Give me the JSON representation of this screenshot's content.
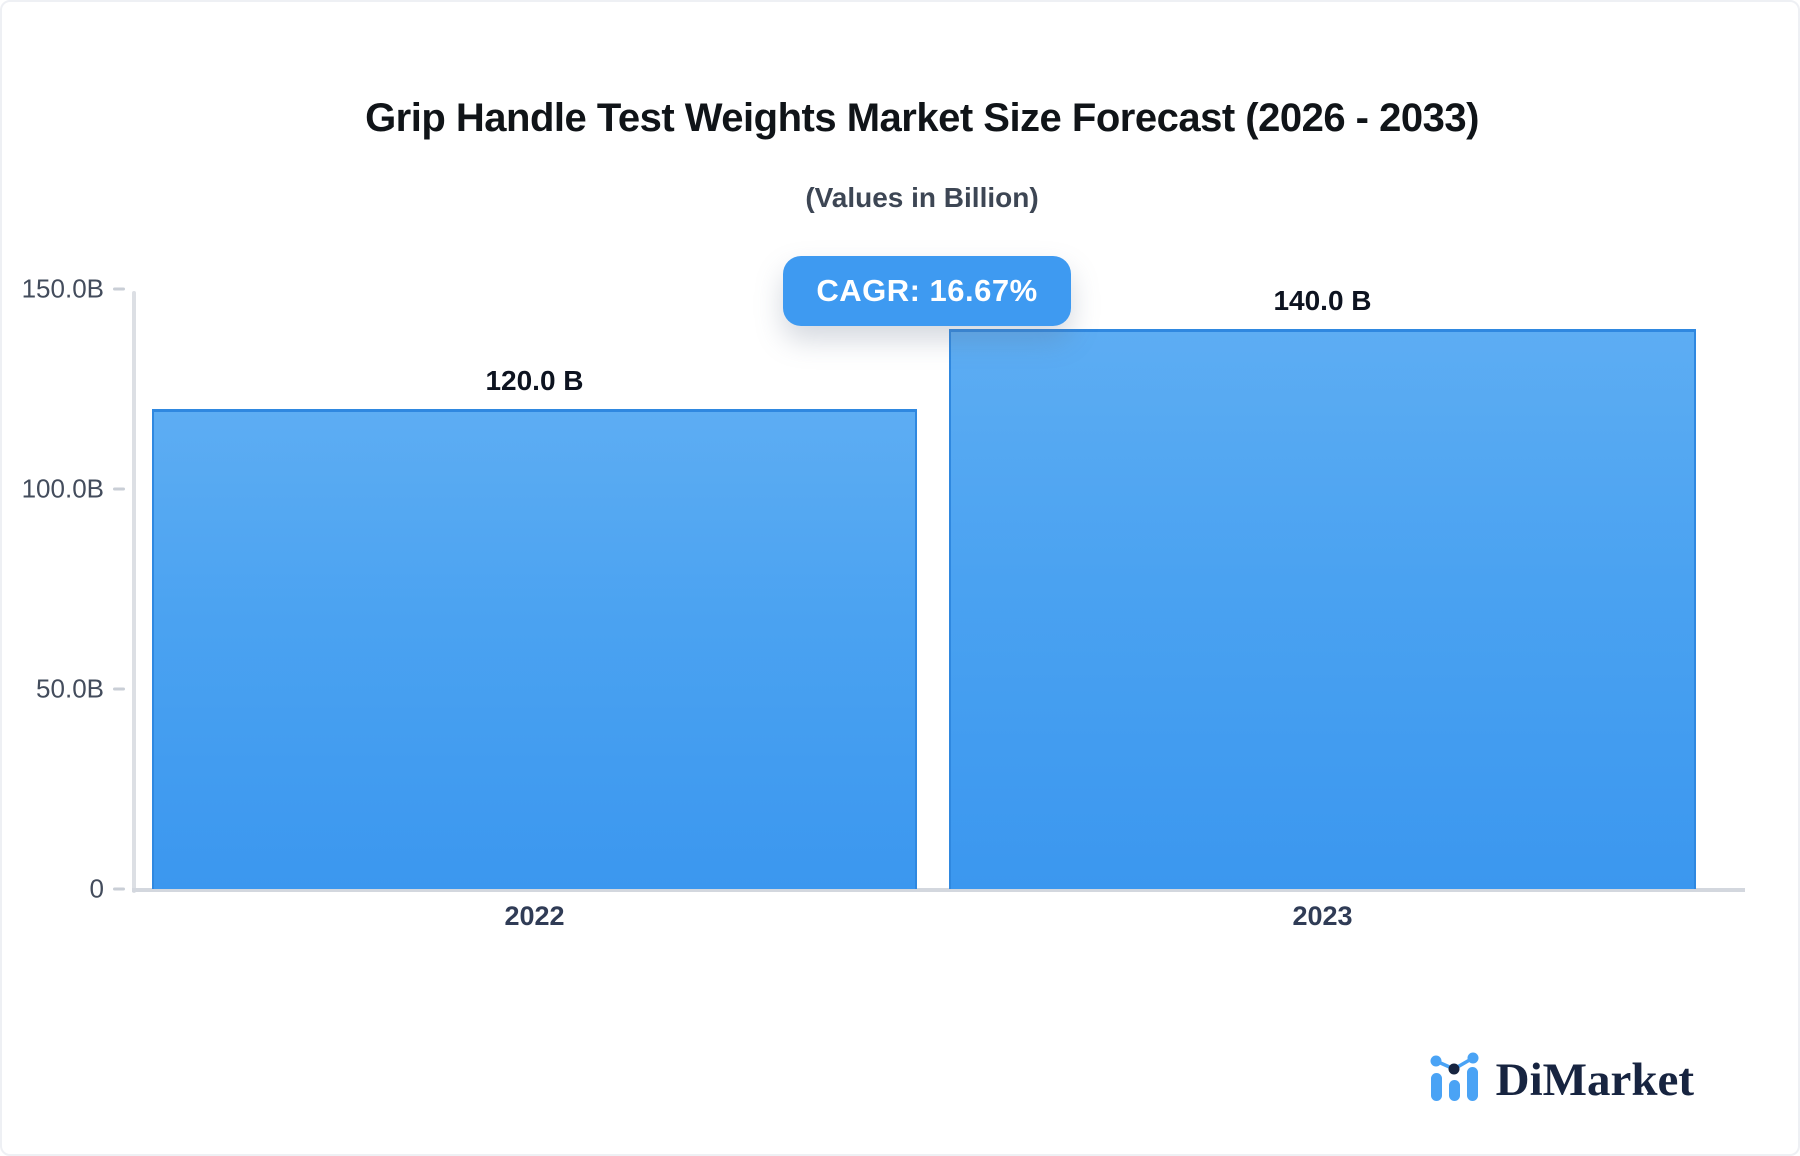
{
  "header": {
    "title": "Grip Handle Test Weights Market Size Forecast (2026 - 2033)",
    "subtitle": "(Values in Billion)"
  },
  "badge": {
    "label": "CAGR: 16.67%"
  },
  "chart_data": {
    "type": "bar",
    "title": "Grip Handle Test Weights Market Size Forecast (2026 - 2033)",
    "subtitle": "(Values in Billion)",
    "unit": "Billion",
    "cagr_percent": 16.67,
    "categories": [
      "2022",
      "2023"
    ],
    "values": [
      120,
      140
    ],
    "value_labels": [
      "120.0 B",
      "140.0 B"
    ],
    "ylim": [
      0,
      150
    ],
    "y_ticks": [
      {
        "value": 150,
        "label": "150.0B"
      },
      {
        "value": 100,
        "label": "100.0B"
      },
      {
        "value": 50,
        "label": "50.0B"
      },
      {
        "value": 0,
        "label": "0"
      }
    ],
    "grid": false,
    "legend": false,
    "bar_color_top": "#5dadf3",
    "bar_color_bottom": "#3b97ef",
    "bar_border_color": "#2f88e0"
  },
  "footer": {
    "brand": "DiMarket"
  },
  "colors": {
    "accent_blue": "#3e9af1",
    "axis_line": "#d3d7de",
    "title_text": "#101418",
    "subtitle_text": "#3d4654",
    "tick_text": "#434c5c",
    "brand_navy": "#172440"
  }
}
